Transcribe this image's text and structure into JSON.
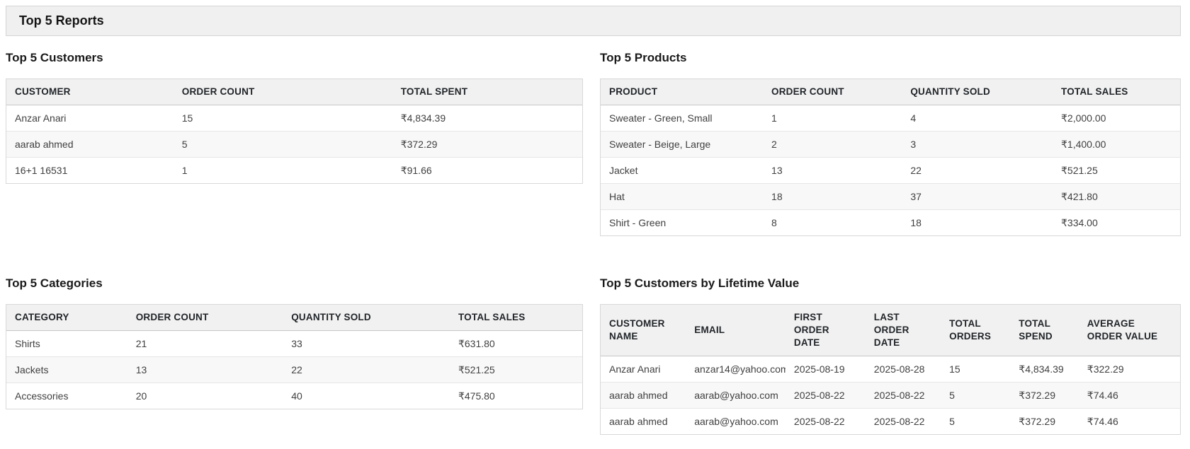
{
  "header": {
    "title": "Top 5 Reports"
  },
  "colors": {
    "header_bar_bg": "#f0f0f0",
    "table_head_bg": "#f1f1f1",
    "stripe_row_bg": "#f8f8f8",
    "border": "#d8d8d8",
    "text_dark": "#212529",
    "text_body": "#404040"
  },
  "sections": [
    {
      "id": "customers",
      "title": "Top 5 Customers",
      "columns": [
        "CUSTOMER",
        "ORDER COUNT",
        "TOTAL SPENT"
      ],
      "rows": [
        [
          "Anzar Anari",
          "15",
          "₹4,834.39"
        ],
        [
          "aarab ahmed",
          "5",
          "₹372.29"
        ],
        [
          "16+1 16531",
          "1",
          "₹91.66"
        ]
      ]
    },
    {
      "id": "products",
      "title": "Top 5 Products",
      "columns": [
        "PRODUCT",
        "ORDER COUNT",
        "QUANTITY SOLD",
        "TOTAL SALES"
      ],
      "rows": [
        [
          "Sweater - Green, Small",
          "1",
          "4",
          "₹2,000.00"
        ],
        [
          "Sweater - Beige, Large",
          "2",
          "3",
          "₹1,400.00"
        ],
        [
          "Jacket",
          "13",
          "22",
          "₹521.25"
        ],
        [
          "Hat",
          "18",
          "37",
          "₹421.80"
        ],
        [
          "Shirt - Green",
          "8",
          "18",
          "₹334.00"
        ]
      ]
    },
    {
      "id": "categories",
      "title": "Top 5 Categories",
      "columns": [
        "CATEGORY",
        "ORDER COUNT",
        "QUANTITY SOLD",
        "TOTAL SALES"
      ],
      "rows": [
        [
          "Shirts",
          "21",
          "33",
          "₹631.80"
        ],
        [
          "Jackets",
          "13",
          "22",
          "₹521.25"
        ],
        [
          "Accessories",
          "20",
          "40",
          "₹475.80"
        ]
      ]
    },
    {
      "id": "lifetime",
      "title": "Top 5 Customers by Lifetime Value",
      "columns": [
        "CUSTOMER NAME",
        "EMAIL",
        "FIRST ORDER DATE",
        "LAST ORDER DATE",
        "TOTAL ORDERS",
        "TOTAL SPEND",
        "AVERAGE ORDER VALUE"
      ],
      "rows": [
        [
          "Anzar Anari",
          "anzar14@yahoo.com",
          "2025-08-19",
          "2025-08-28",
          "15",
          "₹4,834.39",
          "₹322.29"
        ],
        [
          "aarab ahmed",
          "aarab@yahoo.com",
          "2025-08-22",
          "2025-08-22",
          "5",
          "₹372.29",
          "₹74.46"
        ],
        [
          "aarab ahmed",
          "aarab@yahoo.com",
          "2025-08-22",
          "2025-08-22",
          "5",
          "₹372.29",
          "₹74.46"
        ]
      ]
    }
  ]
}
